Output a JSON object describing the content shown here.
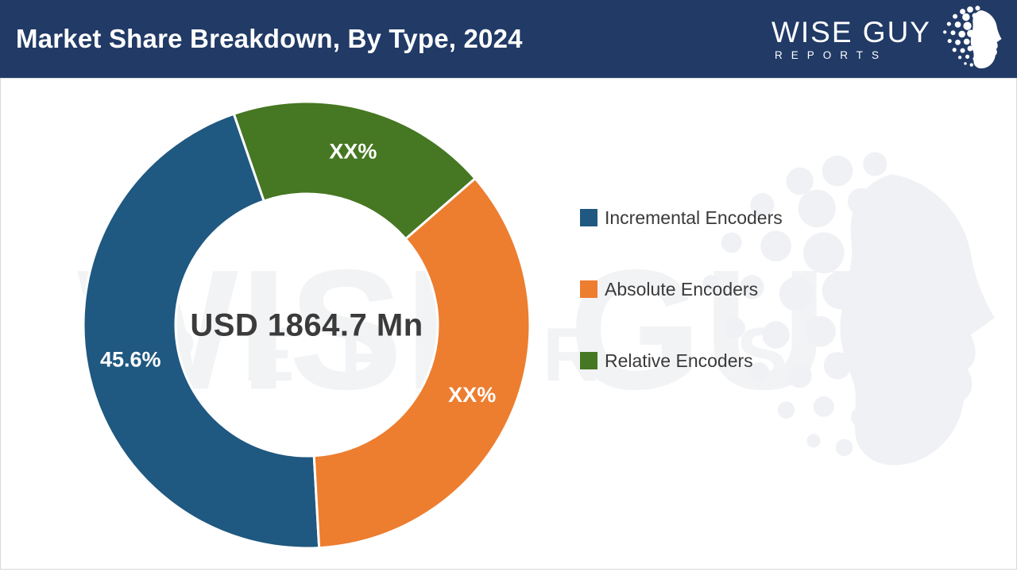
{
  "header": {
    "title": "Market Share Breakdown, By Type, 2024"
  },
  "logo": {
    "line1": "WISE GUY",
    "line2": "REPORTS"
  },
  "watermark": {
    "line1": "WISE GUY",
    "line2": "REPORTS"
  },
  "colors": {
    "header_bg": "#213a66",
    "incremental_blue": "#1f5880",
    "absolute_orange": "#ed7d2f",
    "relative_green": "#467722",
    "center_text": "#3b3b3b",
    "legend_text": "#3a3a3a",
    "watermark_gray": "#f2f3f5"
  },
  "chart_data": {
    "type": "pie",
    "subtype": "donut",
    "title": "Market Share Breakdown, By Type, 2024",
    "center_label": "USD 1864.7 Mn",
    "legend_position": "right",
    "start_angle_deg_clockwise_from_north": 176.8,
    "draw_sequence": [
      0,
      2,
      1
    ],
    "segments": [
      {
        "label": "Incremental Encoders",
        "value": 45.6,
        "display_label": "45.6%",
        "color": "#1f5880"
      },
      {
        "label": "Absolute Encoders",
        "value": 35.5,
        "display_label": "XX%",
        "color": "#ed7d2f"
      },
      {
        "label": "Relative Encoders",
        "value": 18.9,
        "display_label": "XX%",
        "color": "#467722"
      }
    ],
    "masked_values_note": "Absolute and Relative segment percentages are shown as XX% in the chart; their numeric values are estimated from arc angles."
  }
}
